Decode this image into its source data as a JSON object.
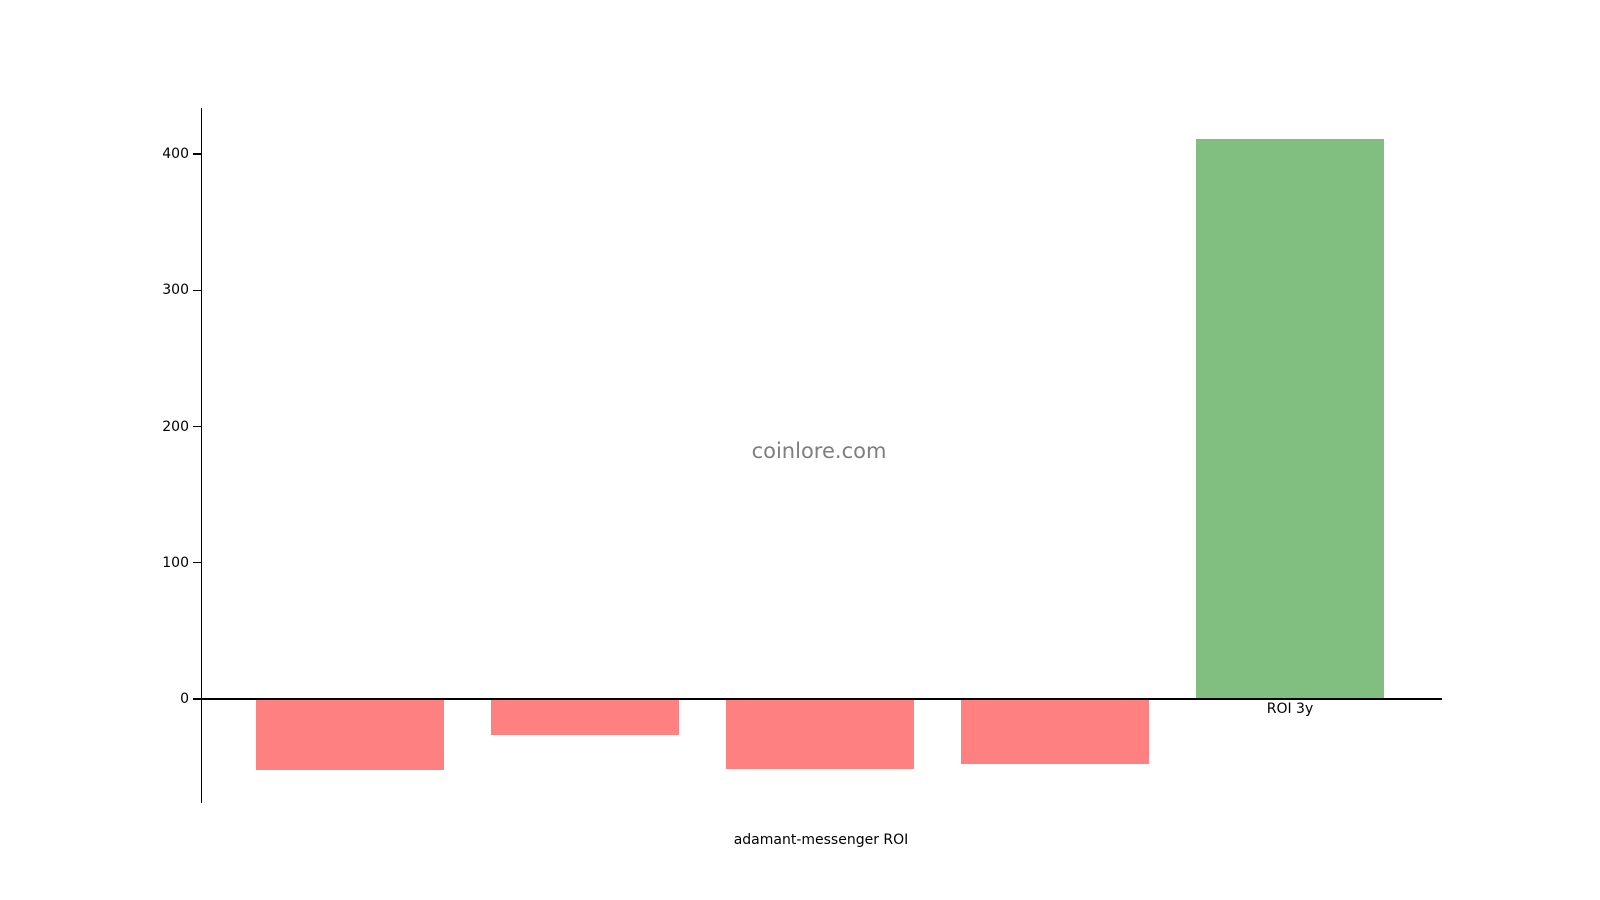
{
  "title": {
    "text": "adamant-messenger ROI"
  },
  "watermark": {
    "text": "coinlore.com",
    "color": "#7f7f7f"
  },
  "chart_data": {
    "type": "bar",
    "title": "adamant-messenger ROI",
    "categories": [
      "",
      "",
      "",
      "",
      "ROI 3y"
    ],
    "values": [
      -52,
      -26.5,
      -51.5,
      -47.5,
      411
    ],
    "xlabel": "",
    "ylabel": "",
    "yticks": [
      0,
      100,
      200,
      300,
      400
    ],
    "ylim": [
      -76,
      434
    ],
    "grid": false,
    "legend": "none",
    "bar_color_positive": "#80bf80",
    "bar_color_negative": "#ff8080",
    "axis_color": "#000000",
    "note": "only the last category label is visible; labels of negative bars are hidden beneath the red bars"
  }
}
